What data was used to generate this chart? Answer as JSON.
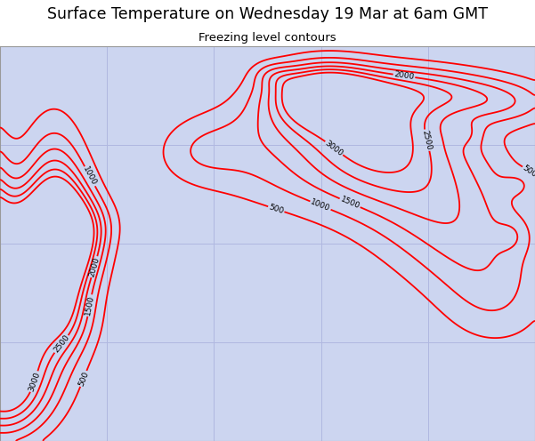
{
  "title": "Surface Temperature on Wednesday 19 Mar at 6am GMT",
  "subtitle": "Freezing level contours",
  "map_bg": "#ccd5f0",
  "title_area_color": "#ffffff",
  "contour_color": "#ff0000",
  "label_color": "#000000",
  "grid_color": "#b0b8e0",
  "border_color": "#999999",
  "fig_width": 6.01,
  "fig_height": 4.96,
  "dpi": 100,
  "title_fontsize": 12.5,
  "subtitle_fontsize": 9.5
}
